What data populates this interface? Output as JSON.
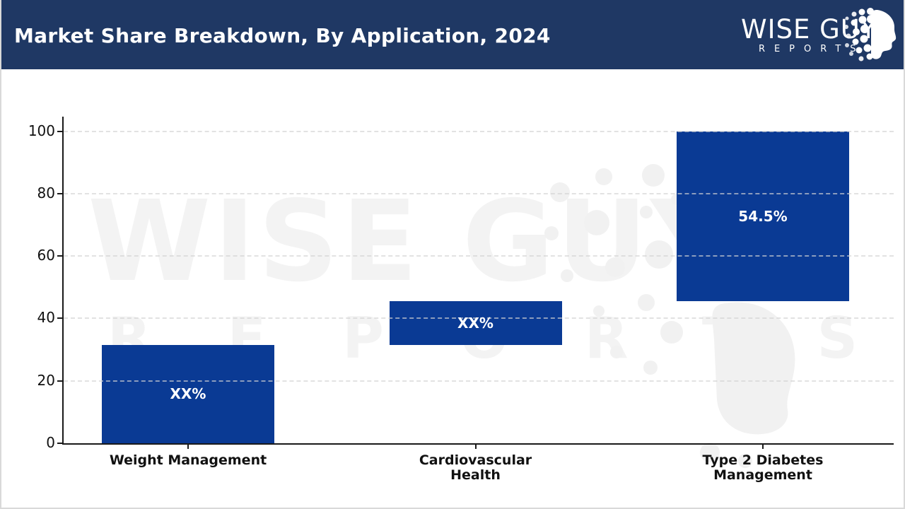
{
  "header": {
    "title": "Market Share Breakdown, By Application, 2024",
    "bg_color": "#1f3864",
    "logo_line1": "WISE GUY",
    "logo_line2": "REPORTS"
  },
  "watermark": {
    "line1": "WISE GUY",
    "line2": "REPORTS"
  },
  "chart_data": {
    "type": "bar",
    "subtype": "waterfall",
    "title": "Market Share Breakdown, By Application, 2024",
    "categories": [
      "Weight Management",
      "Cardiovascular Health",
      "Type 2 Diabetes Management"
    ],
    "categories_lines": [
      [
        "Weight Management"
      ],
      [
        "Cardiovascular",
        "Health"
      ],
      [
        "Type 2 Diabetes",
        "Management"
      ]
    ],
    "segments": [
      {
        "category": "Weight Management",
        "start": 0,
        "end": 31.5,
        "label": "XX%"
      },
      {
        "category": "Cardiovascular Health",
        "start": 31.5,
        "end": 45.5,
        "label": "XX%"
      },
      {
        "category": "Type 2 Diabetes Management",
        "start": 45.5,
        "end": 100,
        "label": "54.5%"
      }
    ],
    "ylim": [
      0,
      100
    ],
    "yticks": [
      0,
      20,
      40,
      60,
      80,
      100
    ],
    "xlabel": "",
    "ylabel": "",
    "grid": true,
    "legend": false,
    "bar_color": "#0a3a94",
    "value_label_color": "#ffffff"
  }
}
